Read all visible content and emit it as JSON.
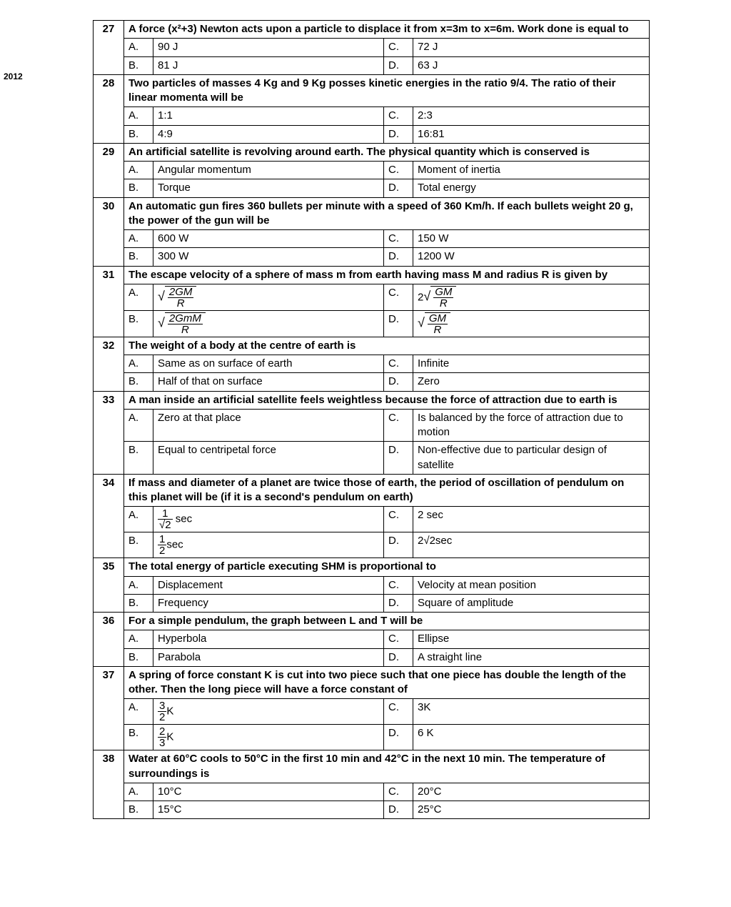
{
  "side_label": "2012",
  "questions": [
    {
      "num": "27",
      "text": "A force (x²+3) Newton acts upon a particle to displace it from x=3m to x=6m. Work done is equal to",
      "A": "90 J",
      "B": "81 J",
      "C": "72 J",
      "D": "63 J"
    },
    {
      "num": "28",
      "text": "Two particles of masses 4 Kg and 9 Kg posses kinetic energies in the ratio 9/4. The ratio of their linear momenta will be",
      "A": "1:1",
      "B": "4:9",
      "C": "2:3",
      "D": "16:81"
    },
    {
      "num": "29",
      "text": "An artificial satellite is revolving around earth. The physical quantity which is conserved is",
      "A": "Angular momentum",
      "B": "Torque",
      "C": "Moment of inertia",
      "D": "Total energy"
    },
    {
      "num": "30",
      "text": "An automatic gun fires 360 bullets per minute with a speed of 360 Km/h. If each bullets weight 20 g, the power of the gun will be",
      "A": "600 W",
      "B": "300 W",
      "C": "150 W",
      "D": "1200 W"
    },
    {
      "num": "31",
      "text": "The escape velocity of a sphere of mass m from earth having mass M and radius R is given by",
      "A_formula": {
        "root": "2GM",
        "den": "R"
      },
      "B_formula": {
        "root": "2GmM",
        "den": "R"
      },
      "C_formula": {
        "prefix": "2",
        "root": "GM",
        "den": "R"
      },
      "D_formula": {
        "root": "GM",
        "den": "R"
      }
    },
    {
      "num": "32",
      "text": "The weight of a body at the centre of earth is",
      "A": "Same as on surface of earth",
      "B": "Half of that on surface",
      "C": "Infinite",
      "D": "Zero"
    },
    {
      "num": "33",
      "text": "A man inside an artificial satellite feels weightless because the force of attraction due to earth is",
      "A": "Zero at that place",
      "B": "Equal to centripetal force",
      "C": "Is balanced by the force of attraction due to motion",
      "D": "Non-effective due to particular design of satellite"
    },
    {
      "num": "34",
      "text": "If mass and diameter of a planet are twice those of earth, the period of oscillation of pendulum on this planet will be (if it is a second's pendulum on earth)",
      "A_html": "<span class='frac'><span class='num'>1</span><span class='den'>√2</span></span> sec",
      "B_html": "<span class='frac'><span class='num'>1</span><span class='den'>2</span></span>sec",
      "C": "2 sec",
      "D": "2√2sec"
    },
    {
      "num": "35",
      "text": "The total energy of particle executing SHM is proportional to",
      "A": "Displacement",
      "B": "Frequency",
      "C": "Velocity at mean position",
      "D": "Square of amplitude"
    },
    {
      "num": "36",
      "text": "For a simple pendulum, the graph between L and T will be",
      "A": "Hyperbola",
      "B": "Parabola",
      "C": "Ellipse",
      "D": "A straight line"
    },
    {
      "num": "37",
      "text": "A spring of force constant K is cut into two piece such that one piece has double the length of the other. Then the long piece will have a force constant of",
      "A_html": "<span class='frac'><span class='num'>3</span><span class='den'>2</span></span>K",
      "B_html": "<span class='frac'><span class='num'>2</span><span class='den'>3</span></span>K",
      "C": "3K",
      "D": "6 K"
    },
    {
      "num": "38",
      "text": "Water at 60°C cools to 50°C in the first 10 min and 42°C in the next 10 min. The temperature of surroundings is",
      "A": "10°C",
      "B": "15°C",
      "C": "20°C",
      "D": "25°C"
    }
  ],
  "labels": {
    "A": "A.",
    "B": "B.",
    "C": "C.",
    "D": "D."
  }
}
